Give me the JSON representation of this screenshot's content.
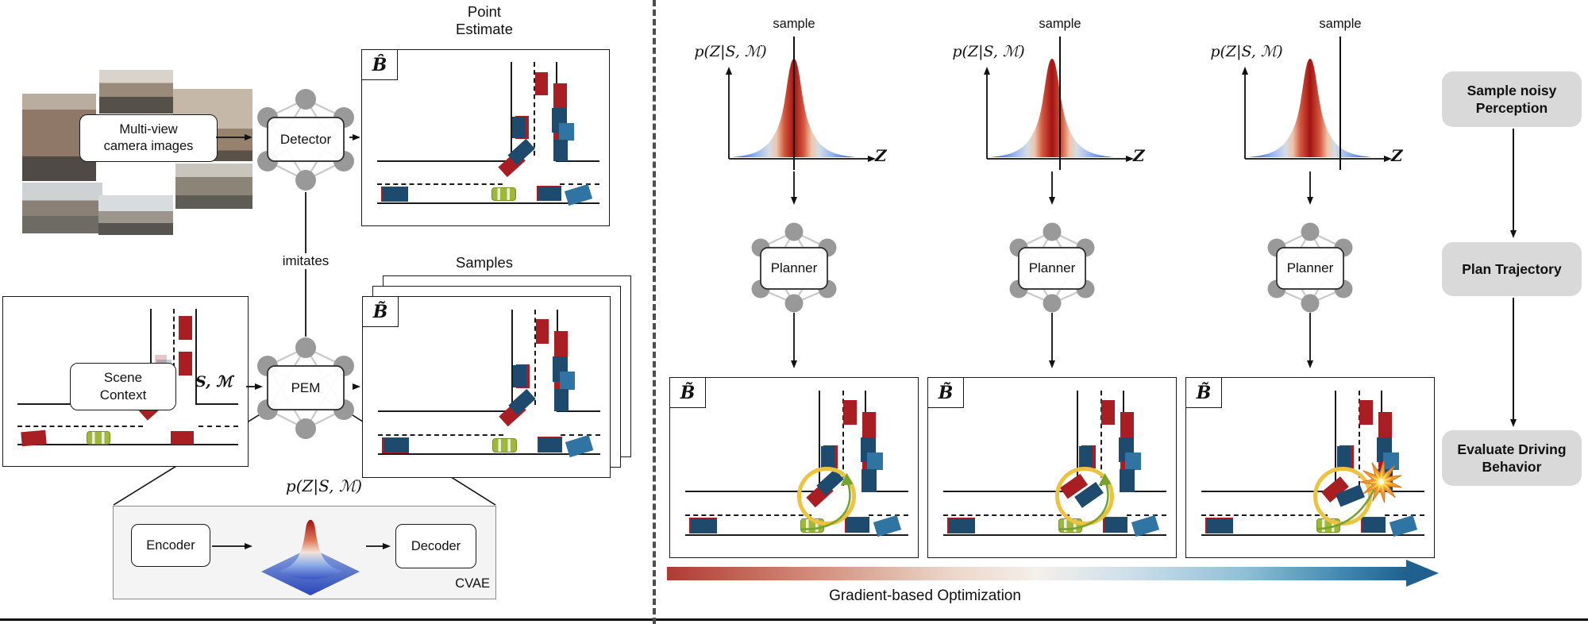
{
  "figure": {
    "left": {
      "camera_label_line1": "Multi-view",
      "camera_label_line2": "camera images",
      "detector_label": "Detector",
      "imitates_label": "imitates",
      "pem_label": "PEM",
      "point_estimate_title_line1": "Point",
      "point_estimate_title_line2": "Estimate",
      "point_estimate_tag": "B̂",
      "samples_title": "Samples",
      "samples_tag": "B̃",
      "scene_context_line1": "Scene",
      "scene_context_line2": "Context",
      "scene_output_label": "S, ℳ",
      "cvae_dist_label": "p(Z|S, ℳ)",
      "encoder_label": "Encoder",
      "decoder_label": "Decoder",
      "cvae_label": "CVAE"
    },
    "right": {
      "columns": [
        {
          "dist_label": "p(Z|S, ℳ)",
          "sample_label": "sample",
          "axis_label": "Z",
          "planner_label": "Planner",
          "scene_tag": "B̃"
        },
        {
          "dist_label": "p(Z|S, ℳ)",
          "sample_label": "sample",
          "axis_label": "Z",
          "planner_label": "Planner",
          "scene_tag": "B̃"
        },
        {
          "dist_label": "p(Z|S, ℳ)",
          "sample_label": "sample",
          "axis_label": "Z",
          "planner_label": "Planner",
          "scene_tag": "B̃"
        }
      ],
      "gradient_label": "Gradient-based Optimization"
    },
    "workflow": {
      "steps": [
        "Sample noisy Perception",
        "Plan Trajectory",
        "Evaluate Driving Behavior"
      ]
    },
    "colors": {
      "gt_red": "#a81e22",
      "det_navy": "#1e4a6d",
      "det_steel": "#2f74a3",
      "ego_green": "#a0b83a",
      "highlight_yellow": "#edc23f",
      "trajectory_green": "#76a22e",
      "node_gray": "#999999",
      "step_box_gray": "#d9d9d9",
      "dist_red": "#a31313",
      "dist_blue": "#3d50c3",
      "crash_orange": "#f29a2b"
    }
  }
}
